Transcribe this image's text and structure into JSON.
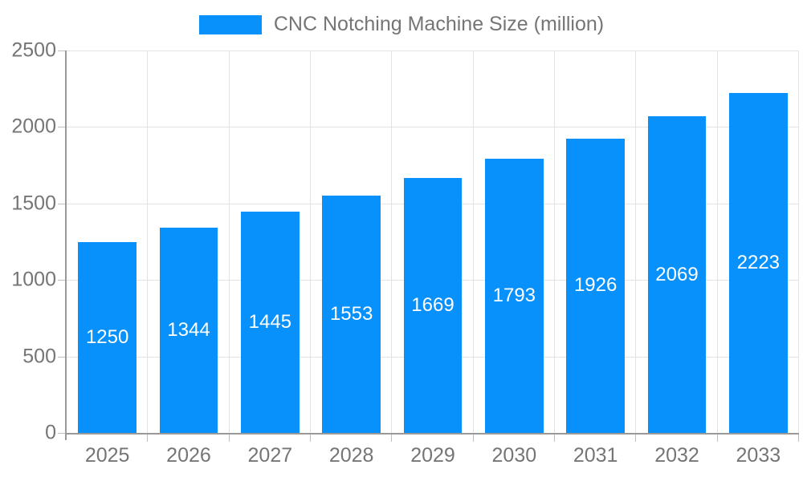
{
  "legend": {
    "label": "CNC Notching Machine Size (million)"
  },
  "colors": {
    "bar": "#0991fb",
    "grid": "#e3e3e3",
    "axis": "#999999",
    "tick": "#bdbdbd",
    "tick_label": "#757575",
    "bar_label": "#ffffff",
    "background": "#ffffff"
  },
  "chart_data": {
    "type": "bar",
    "title": "CNC Notching Machine Size (million)",
    "categories": [
      "2025",
      "2026",
      "2027",
      "2028",
      "2029",
      "2030",
      "2031",
      "2032",
      "2033"
    ],
    "values": [
      1250,
      1344,
      1445,
      1553,
      1669,
      1793,
      1926,
      2069,
      2223
    ],
    "series_name": "CNC Notching Machine Size (million)",
    "xlabel": "",
    "ylabel": "",
    "ylim": [
      0,
      2500
    ],
    "yticks": [
      0,
      500,
      1000,
      1500,
      2000,
      2500
    ],
    "grid": true,
    "legend_position": "top-center",
    "value_labels": "inside-center",
    "bar_color": "#0991fb"
  }
}
